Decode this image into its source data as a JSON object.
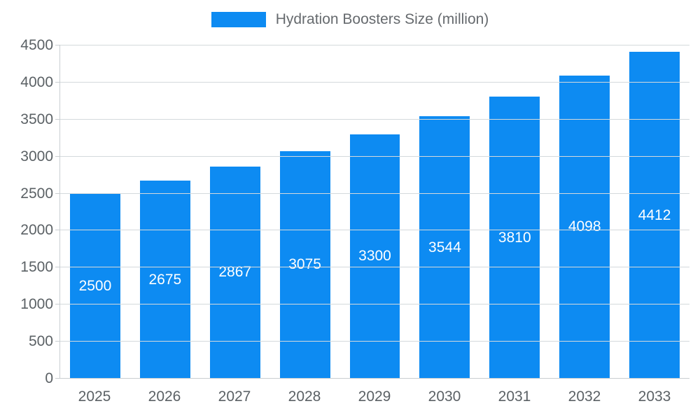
{
  "chart_data": {
    "type": "bar",
    "title": "Hydration Boosters Size (million)",
    "categories": [
      "2025",
      "2026",
      "2027",
      "2028",
      "2029",
      "2030",
      "2031",
      "2032",
      "2033"
    ],
    "values": [
      2500,
      2675,
      2867,
      3075,
      3300,
      3544,
      3810,
      4098,
      4412
    ],
    "xlabel": "",
    "ylabel": "",
    "ylim": [
      0,
      4500
    ],
    "yticks": [
      0,
      500,
      1000,
      1500,
      2000,
      2500,
      3000,
      3500,
      4000,
      4500
    ],
    "grid": "horizontal",
    "legend_position": "top-center",
    "bar_color": "#0d8bf2",
    "grid_color": "#d4d9dc",
    "axis_color": "#c9ced1",
    "tick_label_color": "#5b6165",
    "value_label_color": "#ffffff",
    "title_color": "#666a6e"
  }
}
